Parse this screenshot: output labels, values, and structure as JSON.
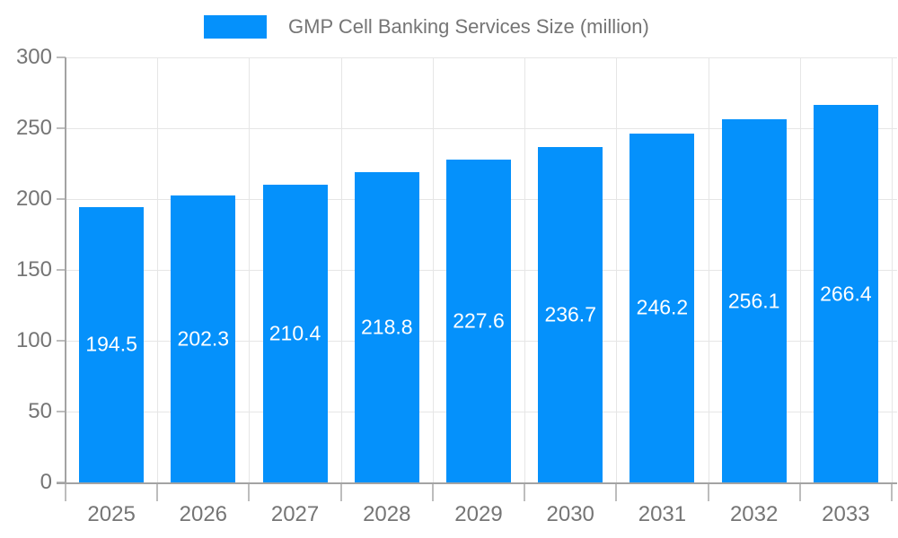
{
  "legend": {
    "label": "GMP Cell Banking Services Size (million)"
  },
  "colors": {
    "bar": "#0591fb",
    "axis_text": "#757575",
    "value_text": "#ffffff",
    "grid": "#e6e6e6",
    "axis_line": "#a3a3a3",
    "tick": "#bdbdbd",
    "background": "#ffffff"
  },
  "chart_data": {
    "type": "bar",
    "title": "GMP Cell Banking Services Size (million)",
    "categories": [
      "2025",
      "2026",
      "2027",
      "2028",
      "2029",
      "2030",
      "2031",
      "2032",
      "2033"
    ],
    "series": [
      {
        "name": "GMP Cell Banking Services Size (million)",
        "values": [
          194.5,
          202.3,
          210.4,
          218.8,
          227.6,
          236.7,
          246.2,
          256.1,
          266.4
        ]
      }
    ],
    "xlabel": "",
    "ylabel": "",
    "ylim": [
      0,
      300
    ],
    "yticks": [
      0,
      50,
      100,
      150,
      200,
      250,
      300
    ],
    "grid": true,
    "legend_position": "top-center",
    "value_label_position": "inside-middle"
  }
}
